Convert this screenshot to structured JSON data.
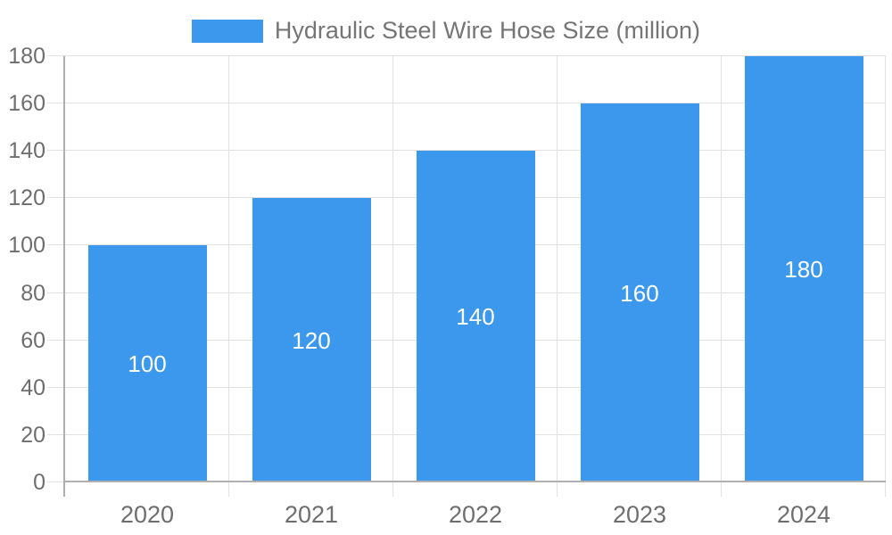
{
  "legend": {
    "label": "Hydraulic Steel Wire Hose Size (million)",
    "swatch_color": "#3B98EC"
  },
  "chart_data": {
    "type": "bar",
    "title": "Hydraulic Steel Wire Hose Size (million)",
    "categories": [
      "2020",
      "2021",
      "2022",
      "2023",
      "2024"
    ],
    "values": [
      100,
      120,
      140,
      160,
      180
    ],
    "series": [
      {
        "name": "Hydraulic Steel Wire Hose Size (million)",
        "values": [
          100,
          120,
          140,
          160,
          180
        ],
        "color": "#3B98EC"
      }
    ],
    "xlabel": "",
    "ylabel": "",
    "ylim": [
      0,
      180
    ],
    "ytick_interval": 20,
    "yticks": [
      0,
      20,
      40,
      60,
      80,
      100,
      120,
      140,
      160,
      180
    ],
    "grid": true,
    "legend_position": "top",
    "bar_label_color": "#ffffff",
    "axis_label_color": "#6e6e6e",
    "background_color": "#ffffff"
  }
}
